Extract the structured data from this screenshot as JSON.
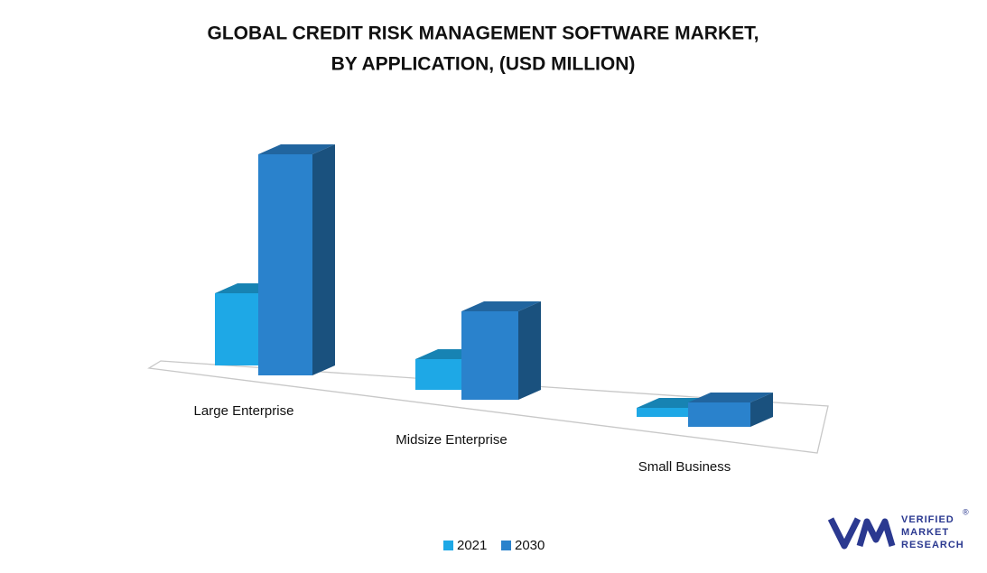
{
  "chart_data": {
    "type": "bar3d",
    "title": [
      "GLOBAL CREDIT RISK MANAGEMENT SOFTWARE MARKET,",
      "BY APPLICATION, (USD MILLION)"
    ],
    "categories": [
      "Large Enterprise",
      "Midsize Enterprise",
      "Small Business"
    ],
    "series": [
      {
        "name": "2021",
        "color": "#1ea8e6",
        "values": [
          80,
          34,
          10
        ]
      },
      {
        "name": "2030",
        "color": "#2a82cc",
        "values": [
          245,
          98,
          27
        ]
      }
    ],
    "legend": "bottom",
    "logo": {
      "lines": [
        "VERIFIED",
        "MARKET",
        "RESEARCH"
      ],
      "mark": "®"
    }
  }
}
